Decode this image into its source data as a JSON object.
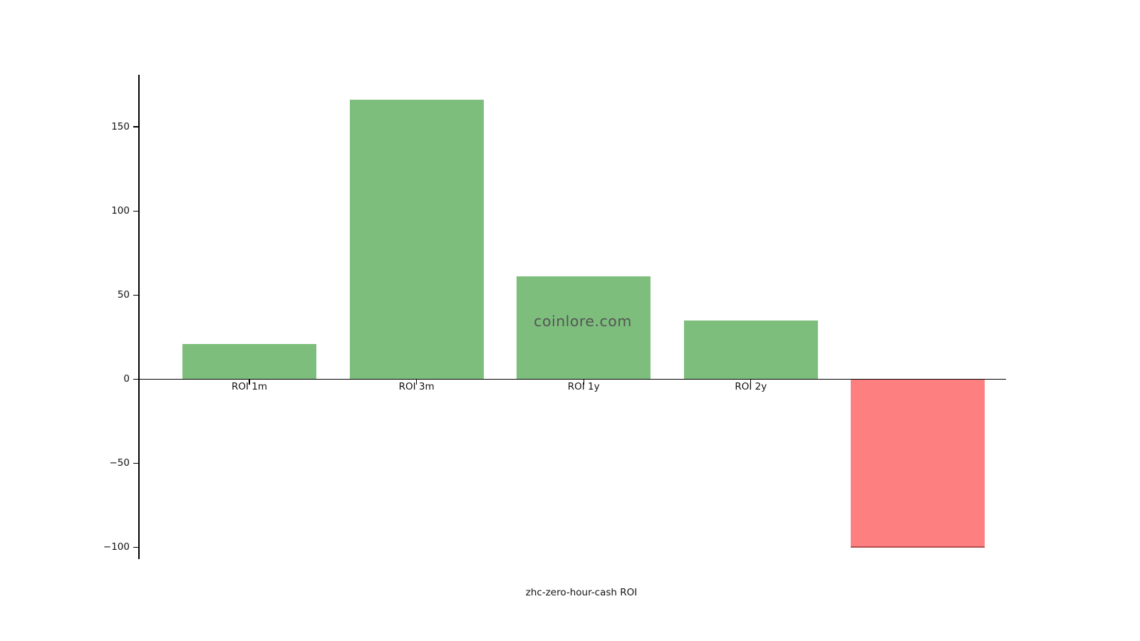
{
  "watermark": {
    "text": "coinlore.com",
    "color": "#555555"
  },
  "chart_data": {
    "type": "bar",
    "title": "",
    "xlabel": "zhc-zero-hour-cash ROI",
    "ylabel": "",
    "categories": [
      "ROI 1m",
      "ROI 3m",
      "ROI 1y",
      "ROI 2y",
      ""
    ],
    "values": [
      21,
      166,
      61,
      35,
      -100
    ],
    "bar_colors": [
      "#7dbe7d",
      "#7dbe7d",
      "#7dbe7d",
      "#7dbe7d",
      "#fd7f7f"
    ],
    "positive_color": "#7dbe7d",
    "negative_color": "#fd7f7f",
    "yticks": [
      150,
      100,
      50,
      0,
      -50,
      -100
    ],
    "ylim": [
      -107,
      181
    ],
    "grid": false,
    "legend": false,
    "background": "#ffffff",
    "axis_color": "#000000",
    "text_color": "#111111"
  }
}
